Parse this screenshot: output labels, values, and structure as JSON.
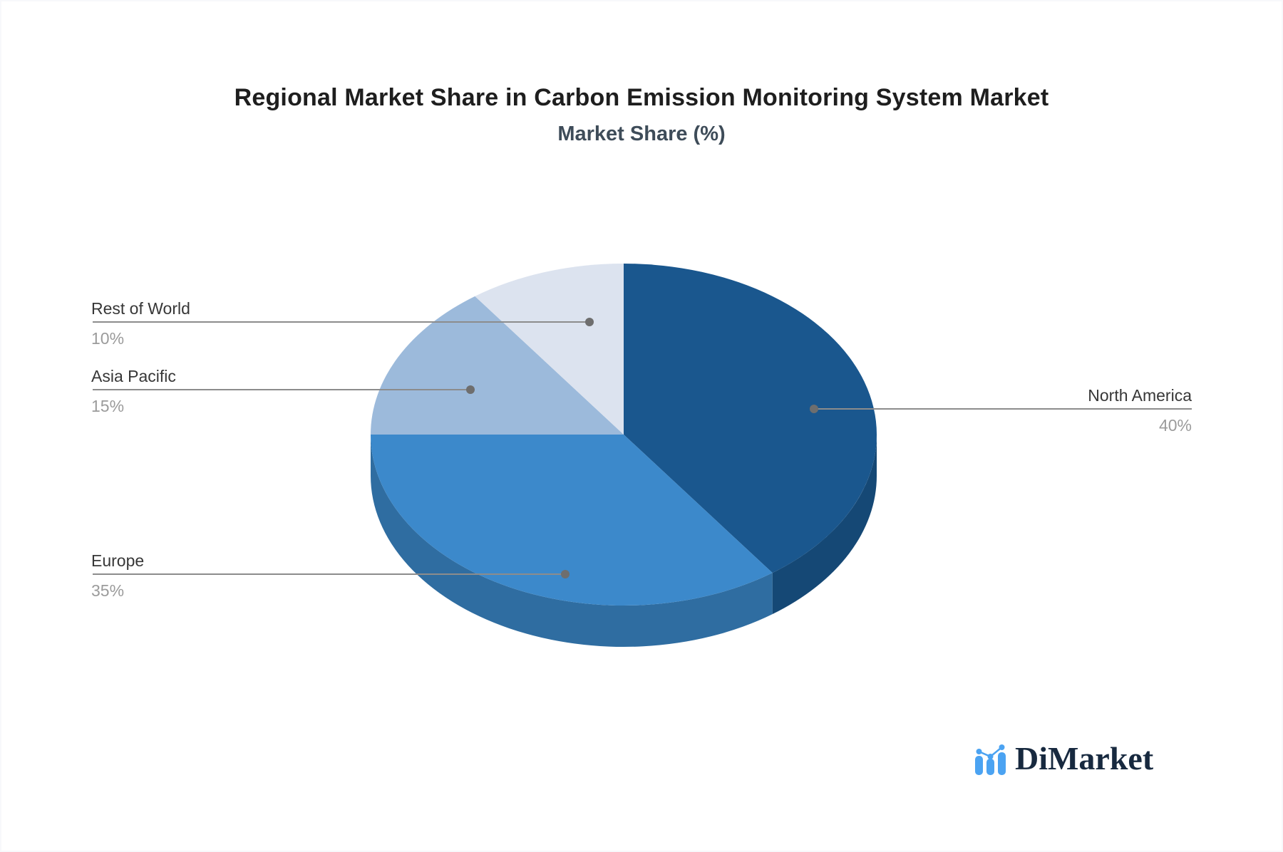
{
  "title": "Regional Market Share in Carbon Emission Monitoring System Market",
  "subtitle": "Market Share (%)",
  "chart_data": {
    "type": "pie",
    "style": "3d-pie",
    "title": "Regional Market Share in Carbon Emission Monitoring System Market",
    "subtitle": "Market Share (%)",
    "unit": "%",
    "direction": "clockwise",
    "start_angle": "12-oclock",
    "legend_position": "callout-labels",
    "slices": [
      {
        "label": "North America",
        "value": 40,
        "pct_label": "40%",
        "color": "#1A578E",
        "side_color": "#154875",
        "callout_side": "right"
      },
      {
        "label": "Europe",
        "value": 35,
        "pct_label": "35%",
        "color": "#3C89CB",
        "side_color": "#2F6DA1",
        "callout_side": "left"
      },
      {
        "label": "Asia Pacific",
        "value": 15,
        "pct_label": "15%",
        "color": "#9CBADB",
        "side_color": "#89A9CB",
        "callout_side": "left"
      },
      {
        "label": "Rest of World",
        "value": 10,
        "pct_label": "10%",
        "color": "#DCE3EF",
        "side_color": "#C3CEDF",
        "callout_side": "left"
      }
    ],
    "callout_line_color": "#8C8C8C",
    "callout_dot_color": "#6E6E6E",
    "label_color": "#373737",
    "pct_color": "#9B9B9B",
    "background": "#FFFFFF"
  },
  "branding": {
    "name": "DiMarket",
    "icon": "bar-line-chart-icon",
    "icon_color": "#4BA3F2",
    "text_color": "#17293F"
  }
}
